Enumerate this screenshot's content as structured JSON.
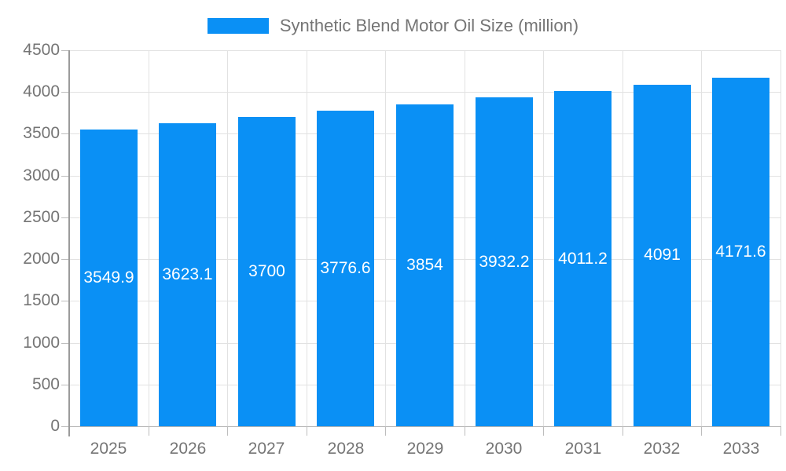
{
  "chart_data": {
    "type": "bar",
    "title": "Synthetic Blend Motor Oil Size (million)",
    "categories": [
      "2025",
      "2026",
      "2027",
      "2028",
      "2029",
      "2030",
      "2031",
      "2032",
      "2033"
    ],
    "values": [
      3549.9,
      3623.1,
      3700,
      3776.6,
      3854,
      3932.2,
      4011.2,
      4091,
      4171.6
    ],
    "value_labels": [
      "3549.9",
      "3623.1",
      "3700",
      "3776.6",
      "3854",
      "3932.2",
      "4011.2",
      "4091",
      "4171.6"
    ],
    "xlabel": "",
    "ylabel": "",
    "ylim": [
      0,
      4500
    ],
    "ytick_step": 500,
    "ytick_labels": [
      "0",
      "500",
      "1000",
      "1500",
      "2000",
      "2500",
      "3000",
      "3500",
      "4000",
      "4500"
    ],
    "grid": true,
    "legend_position": "top-center",
    "colors": {
      "bar": "#0a90f5",
      "axis_text": "#757575",
      "gridline": "#e2e2e2",
      "axis_line": "#9b9b9b",
      "baseline": "#b5b5b5",
      "tick": "#bdbdbd",
      "value_label": "#ffffff",
      "background": "#ffffff"
    }
  }
}
